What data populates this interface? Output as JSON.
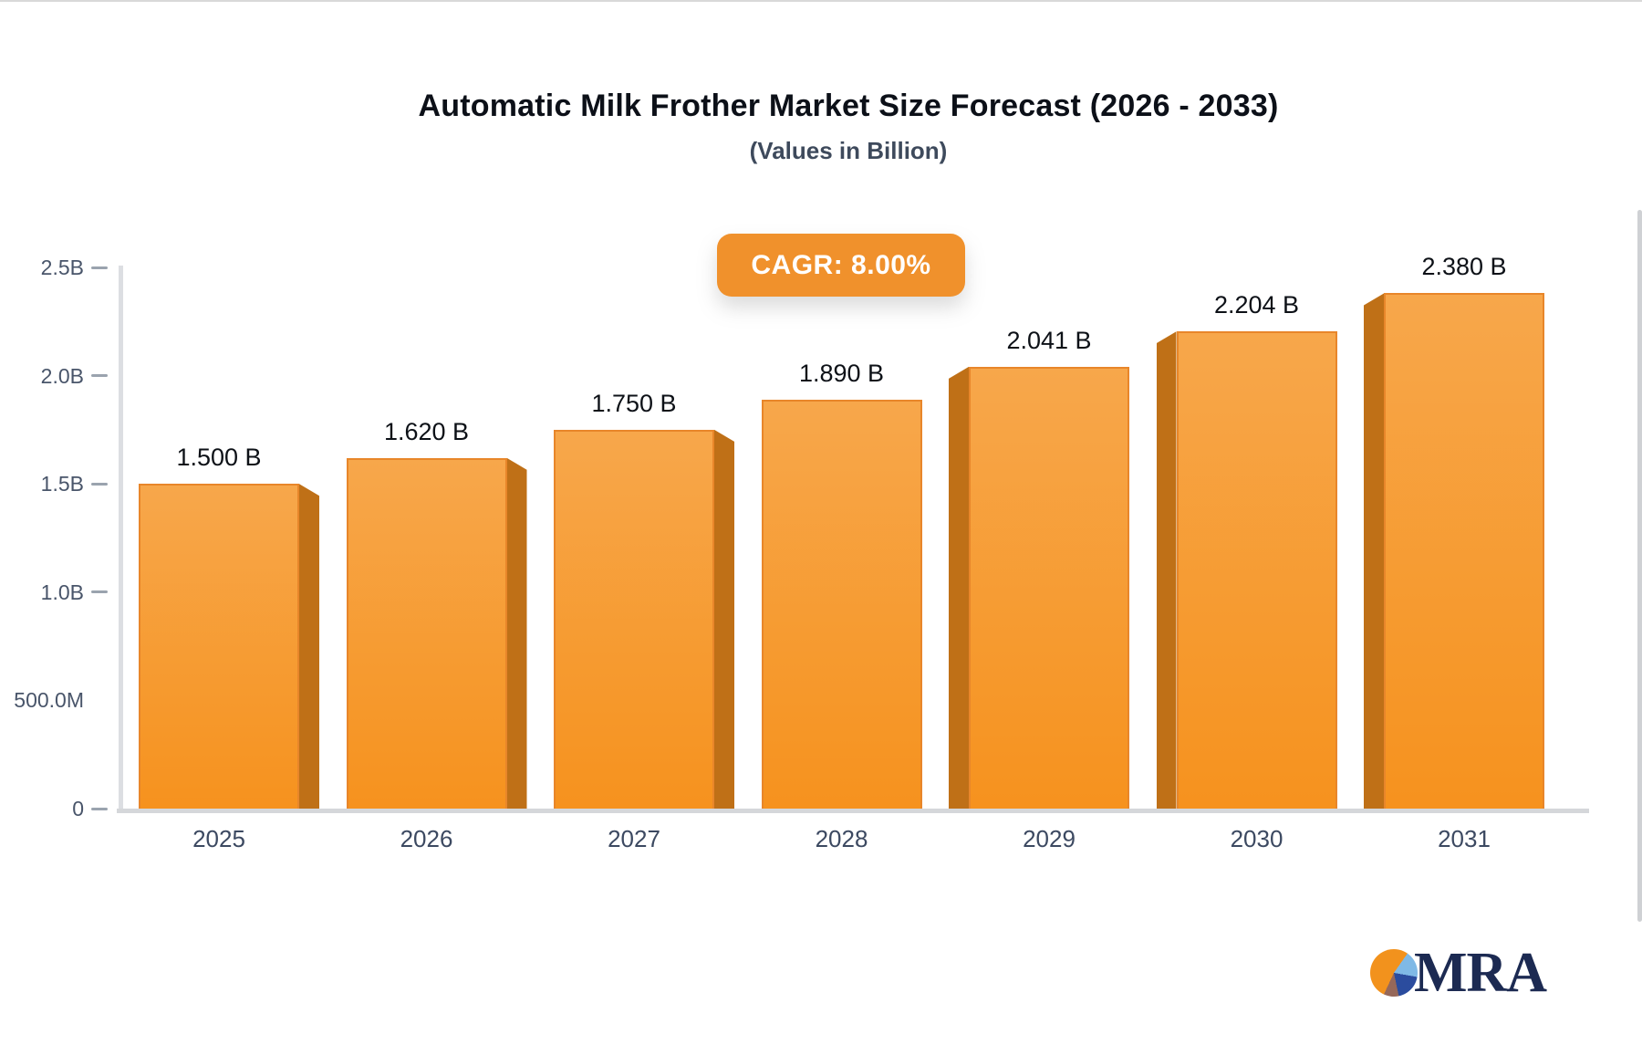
{
  "chart_data": {
    "type": "bar",
    "title": "Automatic Milk Frother Market Size Forecast (2026 - 2033)",
    "subtitle": "(Values in Billion)",
    "cagr_label": "CAGR: 8.00%",
    "categories": [
      "2025",
      "2026",
      "2027",
      "2028",
      "2029",
      "2030",
      "2031"
    ],
    "values": [
      1.5,
      1.62,
      1.75,
      1.89,
      2.041,
      2.204,
      2.38
    ],
    "value_labels": [
      "1.500 B",
      "1.620 B",
      "1.750 B",
      "1.890 B",
      "2.041 B",
      "2.204 B",
      "2.380 B"
    ],
    "y_ticks": [
      {
        "label": "2.5B",
        "value": 2.5,
        "dash": true
      },
      {
        "label": "2.0B",
        "value": 2.0,
        "dash": true
      },
      {
        "label": "1.5B",
        "value": 1.5,
        "dash": true
      },
      {
        "label": "1.0B",
        "value": 1.0,
        "dash": true
      },
      {
        "label": "500.0M",
        "value": 0.5,
        "dash": false
      },
      {
        "label": "0",
        "value": 0.0,
        "dash": true
      }
    ],
    "ylim": [
      0,
      2.5
    ],
    "xlabel": "",
    "ylabel": "",
    "grid": false,
    "legend": null,
    "colors": {
      "bar_face_top": "#f7a74b",
      "bar_face_bottom": "#f6921e",
      "bar_side": "#bf7017",
      "bar_edge": "#e8862a",
      "axis_line": "#d5d7da",
      "tick_dash": "#9aa3ae",
      "badge_bg": "#f0912c",
      "badge_text": "#ffffff"
    }
  },
  "logo": {
    "text": "MRA",
    "text_color": "#1c2a52",
    "pie_orange": "#f2921d",
    "pie_light_blue": "#7fb9e6",
    "pie_dark_blue": "#2b4c9e",
    "pie_brown": "#96685a"
  }
}
